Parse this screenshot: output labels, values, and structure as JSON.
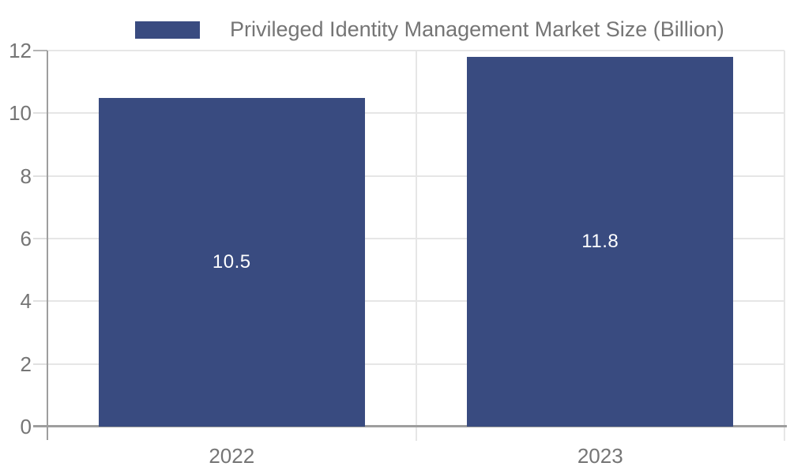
{
  "chart_data": {
    "type": "bar",
    "title": "Privileged Identity Management Market Size (Billion)",
    "categories": [
      "2022",
      "2023"
    ],
    "series": [
      {
        "name": "Privileged Identity Management Market Size (Billion)",
        "values": [
          10.5,
          11.8
        ],
        "value_labels": [
          "10.5",
          "11.8"
        ]
      }
    ],
    "xlabel": "",
    "ylabel": "",
    "ylim": [
      0,
      12
    ],
    "yticks": [
      0,
      2,
      4,
      6,
      8,
      10,
      12
    ],
    "grid": true,
    "legend_position": "top",
    "colors": {
      "bar": "#394B80",
      "data_label": "#ffffff",
      "axis_text": "#757575",
      "gridline": "#e6e6e6",
      "tick_minor": "#e0e0e0",
      "tick_top": "#b3b3b3",
      "axis_line": "#9e9e9e",
      "background": "#ffffff"
    }
  },
  "legend": {
    "label": "Privileged Identity Management Market Size (Billion)",
    "swatch_color": "#394B80"
  }
}
